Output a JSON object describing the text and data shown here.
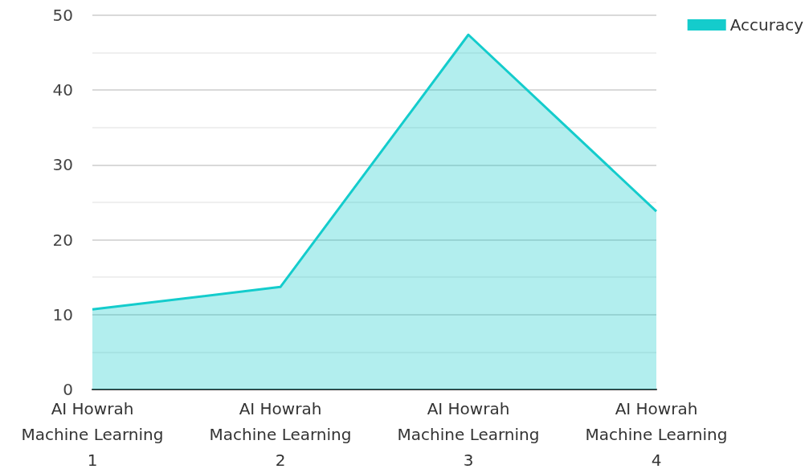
{
  "chart_data": {
    "type": "area",
    "categories": [
      "AI Howrah\nMachine Learning\n1",
      "AI Howrah\nMachine Learning\n2",
      "AI Howrah\nMachine Learning\n3",
      "AI Howrah\nMachine Learning\n4"
    ],
    "series": [
      {
        "name": "Accuracy",
        "color": "#14cccc",
        "values": [
          10.7,
          13.7,
          47.4,
          23.8
        ]
      }
    ],
    "ylim": [
      0,
      50
    ],
    "yticks": [
      0,
      10,
      20,
      30,
      40,
      50
    ],
    "grid": "y",
    "legend": "top right",
    "marker": "none"
  }
}
